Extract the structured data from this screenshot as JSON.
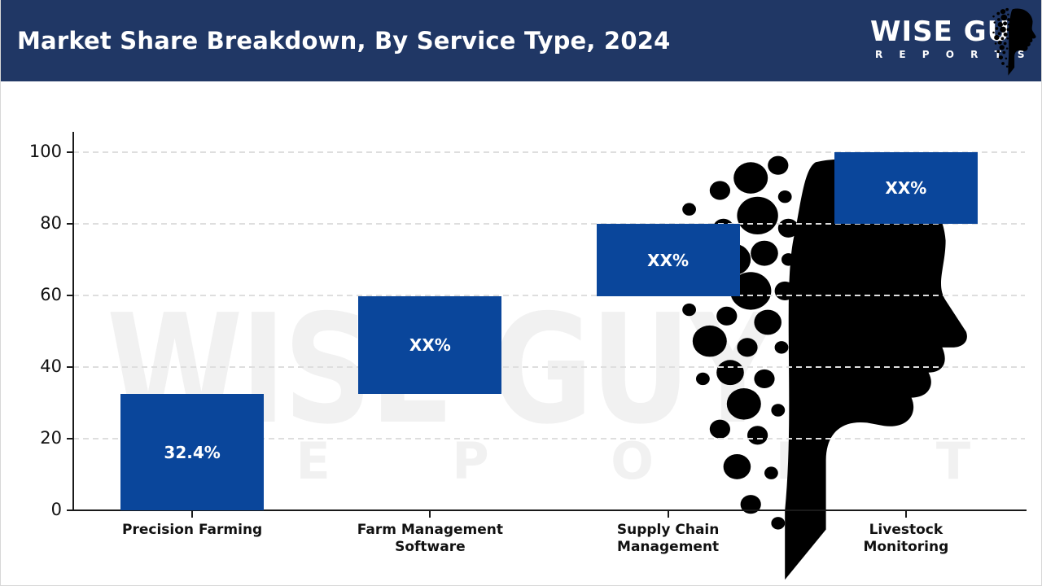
{
  "header": {
    "title": "Market Share Breakdown, By Service Type, 2024"
  },
  "logo": {
    "wordmark": "WISE GUY",
    "subtext": "R E P O R T S"
  },
  "watermark": {
    "wordmark": "WISE GUY",
    "subtext": "R E P O R T S"
  },
  "colors": {
    "header_bg": "#203765",
    "bar": "#0A469B",
    "bar_label": "#FFFFFF",
    "axis": "#1A1A1A",
    "grid": "#DEDEDE",
    "watermark": "#F1F1F1"
  },
  "chart_data": {
    "type": "bar",
    "subtype": "waterfall",
    "title": "Market Share Breakdown, By Service Type, 2024",
    "xlabel": "",
    "ylabel": "",
    "categories": [
      "Precision Farming",
      "Farm Management\nSoftware",
      "Supply Chain\nManagement",
      "Livestock\nMonitoring"
    ],
    "segments": [
      {
        "category": "Precision Farming",
        "start": 0,
        "end": 32.4,
        "label": "32.4%"
      },
      {
        "category": "Farm Management Software",
        "start": 32.4,
        "end": 59.7,
        "label": "XX%"
      },
      {
        "category": "Supply Chain Management",
        "start": 59.7,
        "end": 80,
        "label": "XX%"
      },
      {
        "category": "Livestock Monitoring",
        "start": 80,
        "end": 100,
        "label": "XX%"
      }
    ],
    "values": [
      32.4,
      27.3,
      20.3,
      20.0
    ],
    "bar_labels": [
      "32.4%",
      "XX%",
      "XX%",
      "XX%"
    ],
    "y_ticks": [
      0,
      20,
      40,
      60,
      80,
      100
    ],
    "ylim": [
      0,
      105
    ],
    "grid": "horizontal-dashed",
    "legend": "none"
  }
}
